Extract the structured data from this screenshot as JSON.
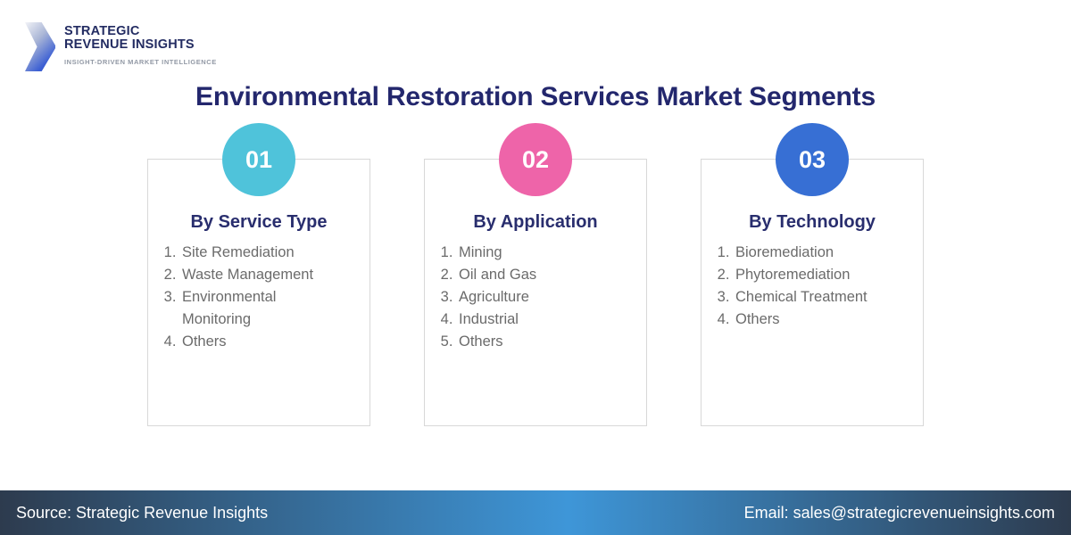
{
  "logo": {
    "line1": "STRATEGIC",
    "line2": "REVENUE INSIGHTS",
    "tagline": "INSIGHT-DRIVEN MARKET INTELLIGENCE"
  },
  "title": "Environmental Restoration Services Market Segments",
  "cards": [
    {
      "number": "01",
      "color": "#4fc3da",
      "heading": "By Service Type",
      "items": [
        "Site Remediation",
        "Waste Management",
        "Environmental Monitoring",
        "Others"
      ]
    },
    {
      "number": "02",
      "color": "#ee64a9",
      "heading": "By Application",
      "items": [
        "Mining",
        "Oil and Gas",
        "Agriculture",
        "Industrial",
        "Others"
      ]
    },
    {
      "number": "03",
      "color": "#376fd4",
      "heading": "By Technology",
      "items": [
        "Bioremediation",
        "Phytoremediation",
        "Chemical Treatment",
        "Others"
      ]
    }
  ],
  "footer": {
    "source": "Source: Strategic Revenue Insights",
    "email": "Email: sales@strategicrevenueinsights.com"
  },
  "colors": {
    "title_navy": "#23276d",
    "heading_navy": "#292e6e",
    "list_gray": "#6b6b6b",
    "card_border": "#d8d8d8",
    "footer_edge": "#2d3b4e",
    "footer_mid": "#3e96d8",
    "logo_navy": "#232c62",
    "logo_blue": "#3b5fd3"
  }
}
